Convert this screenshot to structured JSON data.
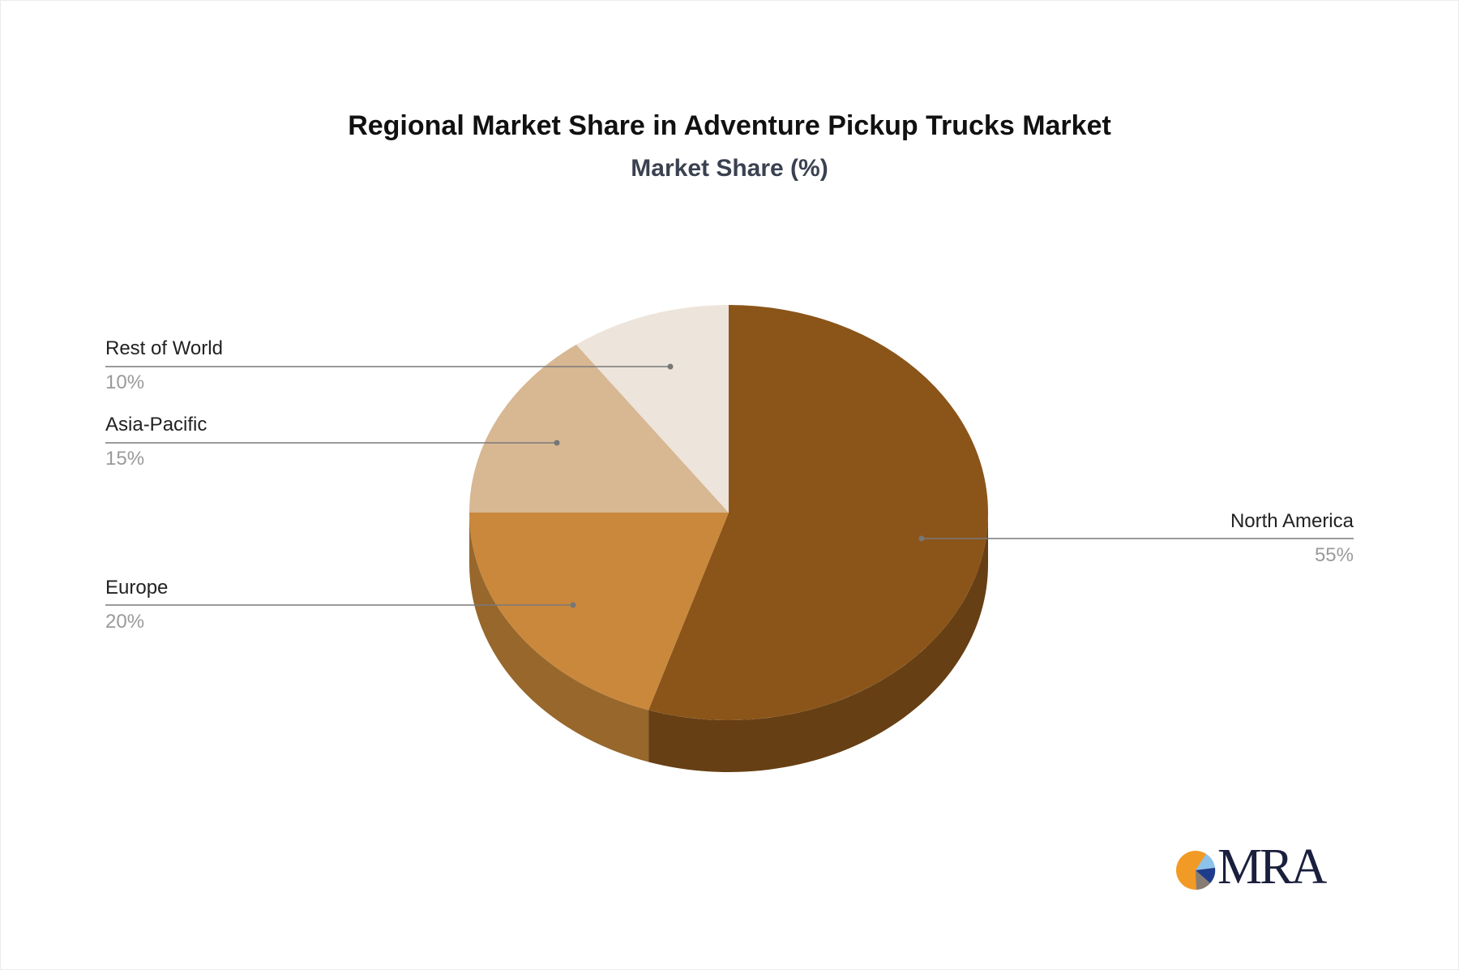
{
  "chart_data": {
    "type": "pie",
    "style": "3d",
    "title": "Regional Market Share in Adventure Pickup Trucks Market",
    "subtitle": "Market Share (%)",
    "slices": [
      {
        "label": "North America",
        "value": 55,
        "display": "55%",
        "color": "#8B5519",
        "side_color": "#673F14"
      },
      {
        "label": "Europe",
        "value": 20,
        "display": "20%",
        "color": "#CA883C",
        "side_color": "#97672C"
      },
      {
        "label": "Asia-Pacific",
        "value": 15,
        "display": "15%",
        "color": "#D8B793",
        "side_color": "#A88B6C"
      },
      {
        "label": "Rest of World",
        "value": 10,
        "display": "10%",
        "color": "#EDE4DB",
        "side_color": "#BDB4AB"
      }
    ]
  },
  "logo": {
    "text": "MRA"
  }
}
